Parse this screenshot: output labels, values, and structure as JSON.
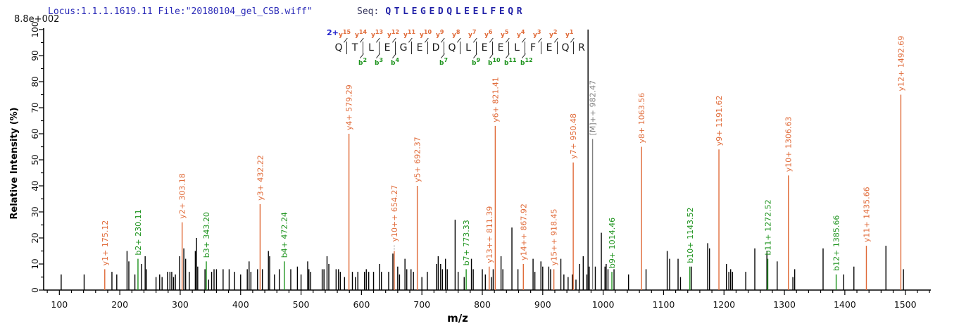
{
  "header": {
    "intensity_scale": "8.8e+002",
    "locus_text": "Locus:1.1.1.1619.11 File:\"20180104_gel_CSB.wiff\"",
    "seq_label": "Seq:",
    "seq_value": "QTLEGEDQLEELFEQR"
  },
  "axes": {
    "x_label": "m/z",
    "y_label": "Relative  Intensity (%)",
    "x_tick_labels": [
      100,
      200,
      300,
      400,
      500,
      600,
      700,
      800,
      900,
      1000,
      1100,
      1200,
      1300,
      1400,
      1500
    ],
    "y_tick_labels": [
      0,
      10,
      20,
      30,
      40,
      50,
      60,
      70,
      80,
      90,
      100
    ],
    "x_minor_step": 20,
    "y_minor_step": 5,
    "x_range": [
      74,
      1540
    ],
    "y_range": [
      0,
      100
    ]
  },
  "ladder": {
    "charge": "2+",
    "residues": [
      "Q",
      "T",
      "L",
      "E",
      "G",
      "E",
      "D",
      "Q",
      "L",
      "E",
      "E",
      "L",
      "F",
      "E",
      "Q",
      "R"
    ],
    "y_ions": [
      "y15",
      "y14",
      "y13",
      "y12",
      "y11",
      "y10",
      "y9",
      "y8",
      "y7",
      "y6",
      "y5",
      "y4",
      "y3",
      "y2",
      "y1"
    ],
    "b_ions": {
      "1": "b2",
      "2": "b3",
      "3": "b4",
      "6": "b7",
      "8": "b9",
      "9": "b10",
      "10": "b11",
      "11": "b12"
    }
  },
  "colors": {
    "y_ion": "#e06a38",
    "b_ion": "#1d931d",
    "precursor": "#808080",
    "peak": "#000000",
    "header_blue": "#2b2bb8",
    "axis": "#000000"
  },
  "chart_data": {
    "type": "bar",
    "subtype": "ms2-stick-spectrum",
    "title": "MS/MS spectrum of QTLEGEDQLEELFEQR (2+), Locus 1.1.1.1619.11",
    "xlabel": "m/z",
    "ylabel": "Relative  Intensity (%)",
    "xlim": [
      74,
      1540
    ],
    "ylim": [
      0,
      100
    ],
    "base_peak_intensity": "8.8e+002",
    "labeled_peaks": [
      {
        "label": "y1+ 175.12",
        "mz": 175.12,
        "pct": 8,
        "ion": "y"
      },
      {
        "label": "b2+ 230.11",
        "mz": 230.11,
        "pct": 12,
        "ion": "b"
      },
      {
        "label": "y2+ 303.18",
        "mz": 303.18,
        "pct": 26,
        "ion": "y"
      },
      {
        "label": "b3+ 343.20",
        "mz": 343.2,
        "pct": 11,
        "ion": "b"
      },
      {
        "label": "y3+ 432.22",
        "mz": 432.22,
        "pct": 33,
        "ion": "y"
      },
      {
        "label": "b4+ 472.24",
        "mz": 472.24,
        "pct": 11,
        "ion": "b"
      },
      {
        "label": "y4+ 579.29",
        "mz": 579.29,
        "pct": 60,
        "ion": "y"
      },
      {
        "label": "y10++ 654.27",
        "mz": 654.27,
        "pct": 15,
        "ion": "y",
        "dashed_leader": true
      },
      {
        "label": "y5+ 692.37",
        "mz": 692.37,
        "pct": 40,
        "ion": "y"
      },
      {
        "label": "b7+ 773.33",
        "mz": 773.33,
        "pct": 8,
        "ion": "b"
      },
      {
        "label": "y13++ 811.39",
        "mz": 811.39,
        "pct": 9,
        "ion": "y"
      },
      {
        "label": "y6+ 821.41",
        "mz": 821.41,
        "pct": 63,
        "ion": "y"
      },
      {
        "label": "y14++ 867.92",
        "mz": 867.92,
        "pct": 10,
        "ion": "y"
      },
      {
        "label": "y15++ 918.45",
        "mz": 918.45,
        "pct": 8,
        "ion": "y"
      },
      {
        "label": "y7+ 950.48",
        "mz": 950.48,
        "pct": 49,
        "ion": "y"
      },
      {
        "label": "[M]++ 982.47",
        "mz": 982.47,
        "pct": 58,
        "ion": "precursor"
      },
      {
        "label": "b9+ 1014.46",
        "mz": 1014.46,
        "pct": 7,
        "ion": "b"
      },
      {
        "label": "y8+ 1063.56",
        "mz": 1063.56,
        "pct": 55,
        "ion": "y"
      },
      {
        "label": "b10+ 1143.52",
        "mz": 1143.52,
        "pct": 9,
        "ion": "b"
      },
      {
        "label": "y9+ 1191.62",
        "mz": 1191.62,
        "pct": 54,
        "ion": "y"
      },
      {
        "label": "b11+ 1272.52",
        "mz": 1272.52,
        "pct": 12,
        "ion": "b"
      },
      {
        "label": "y10+ 1306.63",
        "mz": 1306.63,
        "pct": 44,
        "ion": "y"
      },
      {
        "label": "b12+ 1385.66",
        "mz": 1385.66,
        "pct": 6,
        "ion": "b"
      },
      {
        "label": "y11+ 1435.66",
        "mz": 1435.66,
        "pct": 17,
        "ion": "y"
      },
      {
        "label": "y12+ 1492.69",
        "mz": 1492.69,
        "pct": 75,
        "ion": "y"
      }
    ],
    "unlabeled_peaks": [
      [
        103,
        6
      ],
      [
        141,
        6
      ],
      [
        187,
        7
      ],
      [
        195,
        6
      ],
      [
        212,
        15
      ],
      [
        215,
        11
      ],
      [
        225,
        6
      ],
      [
        236,
        10
      ],
      [
        242,
        13
      ],
      [
        244,
        8
      ],
      [
        260,
        5
      ],
      [
        266,
        6
      ],
      [
        270,
        5
      ],
      [
        279,
        7
      ],
      [
        283,
        7
      ],
      [
        286,
        7
      ],
      [
        289,
        5
      ],
      [
        292,
        6
      ],
      [
        299,
        13
      ],
      [
        306,
        16
      ],
      [
        309,
        12
      ],
      [
        315,
        7
      ],
      [
        325,
        15
      ],
      [
        327,
        20
      ],
      [
        329,
        9
      ],
      [
        341,
        8
      ],
      [
        347,
        4
      ],
      [
        352,
        7
      ],
      [
        356,
        8
      ],
      [
        360,
        8
      ],
      [
        371,
        8
      ],
      [
        381,
        8
      ],
      [
        390,
        7
      ],
      [
        400,
        6
      ],
      [
        411,
        8
      ],
      [
        414,
        11
      ],
      [
        417,
        7
      ],
      [
        428,
        8
      ],
      [
        436,
        8
      ],
      [
        446,
        15
      ],
      [
        448,
        13
      ],
      [
        456,
        6
      ],
      [
        464,
        8
      ],
      [
        483,
        8
      ],
      [
        494,
        9
      ],
      [
        500,
        6
      ],
      [
        511,
        11
      ],
      [
        513,
        8
      ],
      [
        516,
        7
      ],
      [
        535,
        8
      ],
      [
        538,
        8
      ],
      [
        543,
        13
      ],
      [
        546,
        10
      ],
      [
        558,
        8
      ],
      [
        562,
        8
      ],
      [
        565,
        7
      ],
      [
        572,
        5
      ],
      [
        585,
        7
      ],
      [
        590,
        5
      ],
      [
        594,
        7
      ],
      [
        605,
        7
      ],
      [
        608,
        8
      ],
      [
        612,
        7
      ],
      [
        620,
        7
      ],
      [
        630,
        10
      ],
      [
        633,
        7
      ],
      [
        645,
        7
      ],
      [
        652,
        14
      ],
      [
        660,
        9
      ],
      [
        663,
        6
      ],
      [
        672,
        12
      ],
      [
        675,
        8
      ],
      [
        682,
        8
      ],
      [
        686,
        7
      ],
      [
        700,
        5
      ],
      [
        709,
        7
      ],
      [
        724,
        10
      ],
      [
        727,
        13
      ],
      [
        731,
        10
      ],
      [
        734,
        8
      ],
      [
        739,
        12
      ],
      [
        742,
        8
      ],
      [
        755,
        27
      ],
      [
        760,
        7
      ],
      [
        770,
        5
      ],
      [
        782,
        12
      ],
      [
        785,
        8
      ],
      [
        800,
        8
      ],
      [
        805,
        6
      ],
      [
        815,
        5
      ],
      [
        818,
        8
      ],
      [
        831,
        13
      ],
      [
        834,
        8
      ],
      [
        849,
        24
      ],
      [
        859,
        8
      ],
      [
        884,
        12
      ],
      [
        887,
        7
      ],
      [
        897,
        11
      ],
      [
        900,
        9
      ],
      [
        910,
        9
      ],
      [
        913,
        8
      ],
      [
        930,
        12
      ],
      [
        935,
        6
      ],
      [
        942,
        5
      ],
      [
        949,
        6
      ],
      [
        955,
        4
      ],
      [
        961,
        10
      ],
      [
        967,
        13
      ],
      [
        973,
        6
      ],
      [
        975,
        100
      ],
      [
        977,
        9
      ],
      [
        987,
        9
      ],
      [
        997,
        22
      ],
      [
        1003,
        9
      ],
      [
        1005,
        10
      ],
      [
        1008,
        8
      ],
      [
        1018,
        8
      ],
      [
        1042,
        6
      ],
      [
        1071,
        8
      ],
      [
        1106,
        15
      ],
      [
        1110,
        12
      ],
      [
        1124,
        12
      ],
      [
        1128,
        5
      ],
      [
        1146,
        9
      ],
      [
        1173,
        18
      ],
      [
        1176,
        16
      ],
      [
        1204,
        10
      ],
      [
        1208,
        7
      ],
      [
        1211,
        8
      ],
      [
        1214,
        7
      ],
      [
        1236,
        7
      ],
      [
        1251,
        16
      ],
      [
        1271,
        15
      ],
      [
        1288,
        11
      ],
      [
        1314,
        5
      ],
      [
        1317,
        8
      ],
      [
        1364,
        16
      ],
      [
        1398,
        6
      ],
      [
        1415,
        9
      ],
      [
        1468,
        17
      ],
      [
        1497,
        8
      ]
    ]
  }
}
